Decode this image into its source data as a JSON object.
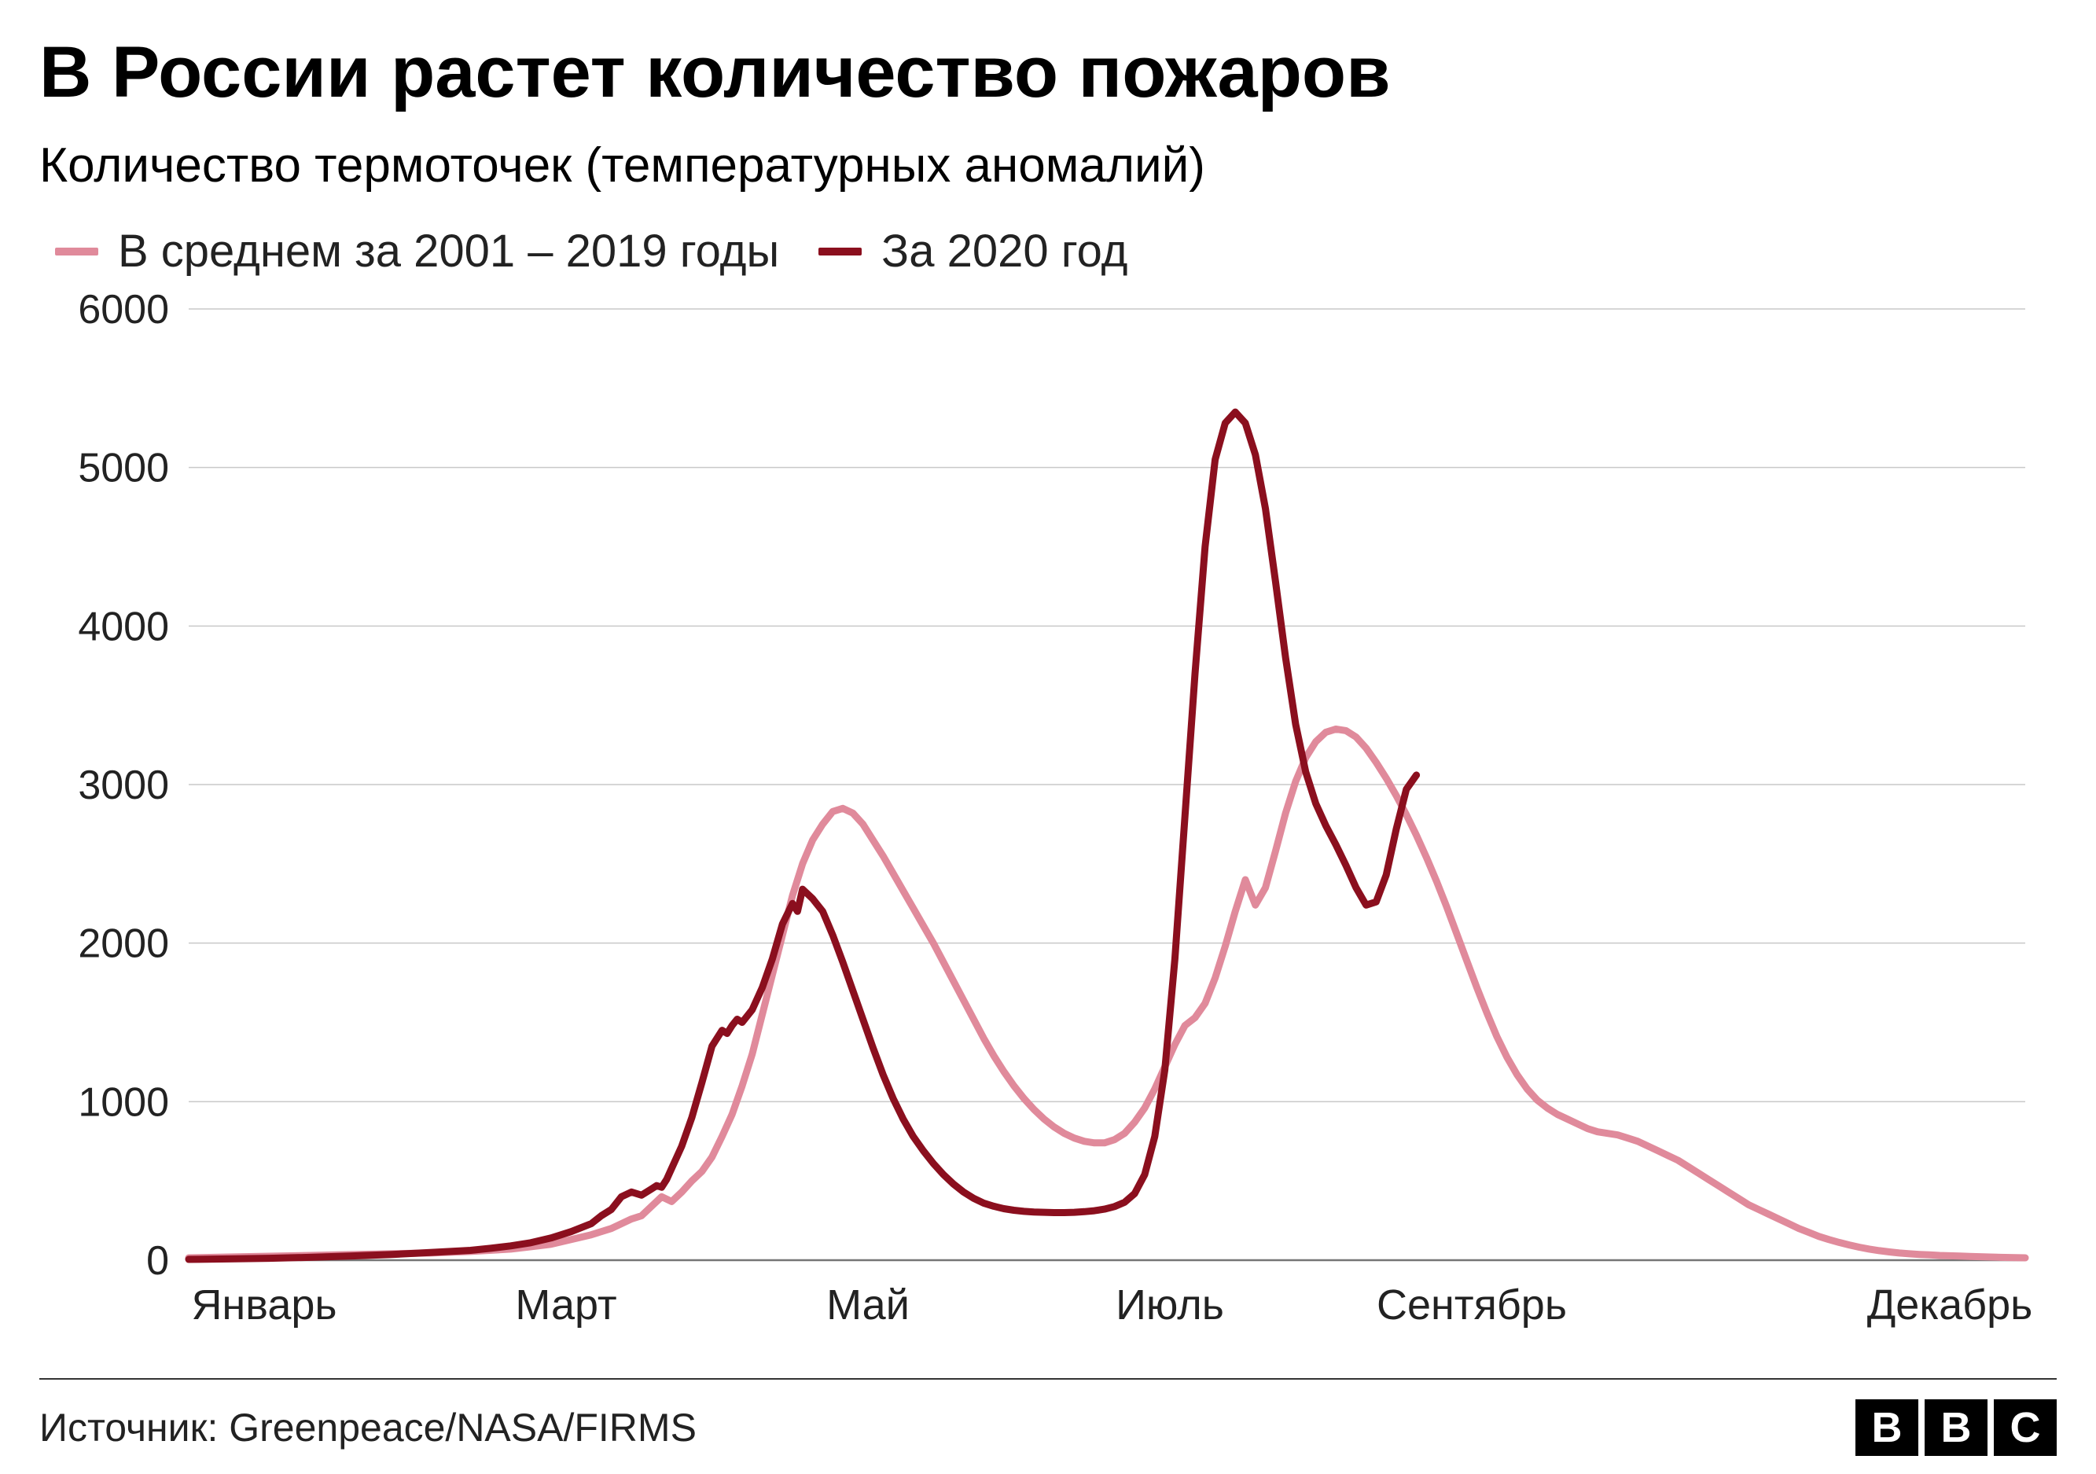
{
  "title": "В России растет количество пожаров",
  "subtitle": "Количество термоточек (температурных аномалий)",
  "legend": {
    "series_a": {
      "label": "В среднем за 2001 – 2019 годы",
      "color": "#e08a9b"
    },
    "series_b": {
      "label": "За 2020 год",
      "color": "#8b0f1e"
    }
  },
  "chart": {
    "type": "line",
    "background_color": "#ffffff",
    "grid_color": "#c9c9c9",
    "baseline_color": "#757575",
    "xlim": [
      0,
      365
    ],
    "ylim": [
      0,
      6000
    ],
    "ytick_step": 1000,
    "ytick_labels": [
      "0",
      "1000",
      "2000",
      "3000",
      "4000",
      "5000",
      "6000"
    ],
    "xtick_positions": [
      15,
      75,
      135,
      195,
      255,
      350
    ],
    "xtick_labels": [
      "Январь",
      "Март",
      "Май",
      "Июль",
      "Сентябрь",
      "Декабрь"
    ],
    "line_width": 9,
    "label_fontsize": 52,
    "series_a": {
      "color": "#e08a9b",
      "points": [
        [
          0,
          15
        ],
        [
          8,
          20
        ],
        [
          16,
          25
        ],
        [
          24,
          30
        ],
        [
          32,
          35
        ],
        [
          40,
          40
        ],
        [
          48,
          45
        ],
        [
          56,
          55
        ],
        [
          64,
          70
        ],
        [
          68,
          85
        ],
        [
          72,
          100
        ],
        [
          76,
          130
        ],
        [
          80,
          160
        ],
        [
          84,
          200
        ],
        [
          88,
          260
        ],
        [
          90,
          280
        ],
        [
          92,
          340
        ],
        [
          94,
          400
        ],
        [
          96,
          370
        ],
        [
          98,
          430
        ],
        [
          100,
          500
        ],
        [
          102,
          560
        ],
        [
          104,
          650
        ],
        [
          106,
          780
        ],
        [
          108,
          920
        ],
        [
          110,
          1100
        ],
        [
          112,
          1300
        ],
        [
          114,
          1550
        ],
        [
          116,
          1800
        ],
        [
          118,
          2050
        ],
        [
          120,
          2300
        ],
        [
          122,
          2500
        ],
        [
          124,
          2650
        ],
        [
          126,
          2750
        ],
        [
          128,
          2830
        ],
        [
          130,
          2850
        ],
        [
          132,
          2820
        ],
        [
          134,
          2750
        ],
        [
          136,
          2650
        ],
        [
          138,
          2550
        ],
        [
          140,
          2440
        ],
        [
          142,
          2330
        ],
        [
          144,
          2220
        ],
        [
          146,
          2110
        ],
        [
          148,
          2000
        ],
        [
          150,
          1880
        ],
        [
          152,
          1760
        ],
        [
          154,
          1640
        ],
        [
          156,
          1520
        ],
        [
          158,
          1400
        ],
        [
          160,
          1290
        ],
        [
          162,
          1190
        ],
        [
          164,
          1100
        ],
        [
          166,
          1020
        ],
        [
          168,
          950
        ],
        [
          170,
          890
        ],
        [
          172,
          840
        ],
        [
          174,
          800
        ],
        [
          176,
          770
        ],
        [
          178,
          750
        ],
        [
          180,
          740
        ],
        [
          182,
          740
        ],
        [
          184,
          760
        ],
        [
          186,
          800
        ],
        [
          188,
          870
        ],
        [
          190,
          960
        ],
        [
          192,
          1080
        ],
        [
          194,
          1220
        ],
        [
          196,
          1360
        ],
        [
          198,
          1480
        ],
        [
          200,
          1530
        ],
        [
          202,
          1620
        ],
        [
          204,
          1780
        ],
        [
          206,
          1980
        ],
        [
          208,
          2200
        ],
        [
          210,
          2400
        ],
        [
          212,
          2240
        ],
        [
          214,
          2350
        ],
        [
          216,
          2580
        ],
        [
          218,
          2820
        ],
        [
          220,
          3020
        ],
        [
          222,
          3170
        ],
        [
          224,
          3270
        ],
        [
          226,
          3330
        ],
        [
          228,
          3350
        ],
        [
          230,
          3340
        ],
        [
          232,
          3300
        ],
        [
          234,
          3230
        ],
        [
          236,
          3140
        ],
        [
          238,
          3040
        ],
        [
          240,
          2930
        ],
        [
          242,
          2810
        ],
        [
          244,
          2680
        ],
        [
          246,
          2540
        ],
        [
          248,
          2390
        ],
        [
          250,
          2230
        ],
        [
          252,
          2060
        ],
        [
          254,
          1890
        ],
        [
          256,
          1720
        ],
        [
          258,
          1560
        ],
        [
          260,
          1410
        ],
        [
          262,
          1280
        ],
        [
          264,
          1170
        ],
        [
          266,
          1080
        ],
        [
          268,
          1010
        ],
        [
          270,
          960
        ],
        [
          272,
          920
        ],
        [
          274,
          890
        ],
        [
          276,
          860
        ],
        [
          278,
          830
        ],
        [
          280,
          810
        ],
        [
          282,
          800
        ],
        [
          284,
          790
        ],
        [
          286,
          770
        ],
        [
          288,
          750
        ],
        [
          290,
          720
        ],
        [
          292,
          690
        ],
        [
          294,
          660
        ],
        [
          296,
          630
        ],
        [
          298,
          590
        ],
        [
          300,
          550
        ],
        [
          302,
          510
        ],
        [
          304,
          470
        ],
        [
          306,
          430
        ],
        [
          308,
          390
        ],
        [
          310,
          350
        ],
        [
          312,
          320
        ],
        [
          314,
          290
        ],
        [
          316,
          260
        ],
        [
          318,
          230
        ],
        [
          320,
          200
        ],
        [
          322,
          175
        ],
        [
          324,
          150
        ],
        [
          326,
          130
        ],
        [
          328,
          112
        ],
        [
          330,
          96
        ],
        [
          332,
          82
        ],
        [
          334,
          70
        ],
        [
          336,
          60
        ],
        [
          338,
          52
        ],
        [
          340,
          45
        ],
        [
          342,
          40
        ],
        [
          344,
          36
        ],
        [
          346,
          33
        ],
        [
          348,
          30
        ],
        [
          350,
          28
        ],
        [
          352,
          26
        ],
        [
          354,
          24
        ],
        [
          356,
          22
        ],
        [
          358,
          20
        ],
        [
          360,
          18
        ],
        [
          365,
          15
        ]
      ]
    },
    "series_b": {
      "color": "#8b0f1e",
      "points": [
        [
          0,
          5
        ],
        [
          8,
          8
        ],
        [
          16,
          12
        ],
        [
          24,
          18
        ],
        [
          32,
          26
        ],
        [
          40,
          35
        ],
        [
          48,
          48
        ],
        [
          56,
          62
        ],
        [
          60,
          75
        ],
        [
          64,
          90
        ],
        [
          68,
          110
        ],
        [
          72,
          140
        ],
        [
          76,
          180
        ],
        [
          80,
          230
        ],
        [
          82,
          280
        ],
        [
          84,
          320
        ],
        [
          86,
          400
        ],
        [
          88,
          430
        ],
        [
          90,
          410
        ],
        [
          92,
          450
        ],
        [
          93,
          470
        ],
        [
          94,
          460
        ],
        [
          95,
          510
        ],
        [
          96,
          580
        ],
        [
          98,
          720
        ],
        [
          100,
          900
        ],
        [
          102,
          1120
        ],
        [
          104,
          1350
        ],
        [
          106,
          1450
        ],
        [
          107,
          1430
        ],
        [
          108,
          1480
        ],
        [
          109,
          1520
        ],
        [
          110,
          1500
        ],
        [
          112,
          1580
        ],
        [
          114,
          1720
        ],
        [
          116,
          1900
        ],
        [
          118,
          2120
        ],
        [
          120,
          2250
        ],
        [
          121,
          2200
        ],
        [
          122,
          2340
        ],
        [
          124,
          2280
        ],
        [
          126,
          2200
        ],
        [
          128,
          2050
        ],
        [
          130,
          1880
        ],
        [
          132,
          1700
        ],
        [
          134,
          1520
        ],
        [
          136,
          1340
        ],
        [
          138,
          1170
        ],
        [
          140,
          1020
        ],
        [
          142,
          890
        ],
        [
          144,
          780
        ],
        [
          146,
          690
        ],
        [
          148,
          610
        ],
        [
          150,
          540
        ],
        [
          152,
          480
        ],
        [
          154,
          430
        ],
        [
          156,
          390
        ],
        [
          158,
          360
        ],
        [
          160,
          340
        ],
        [
          162,
          325
        ],
        [
          164,
          315
        ],
        [
          166,
          308
        ],
        [
          168,
          304
        ],
        [
          170,
          302
        ],
        [
          172,
          300
        ],
        [
          174,
          300
        ],
        [
          176,
          302
        ],
        [
          178,
          306
        ],
        [
          180,
          312
        ],
        [
          182,
          322
        ],
        [
          184,
          338
        ],
        [
          186,
          365
        ],
        [
          188,
          420
        ],
        [
          190,
          540
        ],
        [
          192,
          780
        ],
        [
          194,
          1200
        ],
        [
          196,
          1900
        ],
        [
          198,
          2800
        ],
        [
          200,
          3700
        ],
        [
          202,
          4500
        ],
        [
          204,
          5050
        ],
        [
          206,
          5280
        ],
        [
          208,
          5350
        ],
        [
          210,
          5280
        ],
        [
          212,
          5080
        ],
        [
          214,
          4740
        ],
        [
          216,
          4280
        ],
        [
          218,
          3800
        ],
        [
          220,
          3380
        ],
        [
          222,
          3080
        ],
        [
          224,
          2880
        ],
        [
          226,
          2740
        ],
        [
          228,
          2620
        ],
        [
          230,
          2490
        ],
        [
          232,
          2350
        ],
        [
          234,
          2240
        ],
        [
          236,
          2260
        ],
        [
          238,
          2430
        ],
        [
          240,
          2720
        ],
        [
          242,
          2970
        ],
        [
          244,
          3060
        ]
      ]
    }
  },
  "source": "Источник: Greenpeace/NASA/FIRMS",
  "logo": {
    "letters": [
      "B",
      "B",
      "C"
    ]
  }
}
